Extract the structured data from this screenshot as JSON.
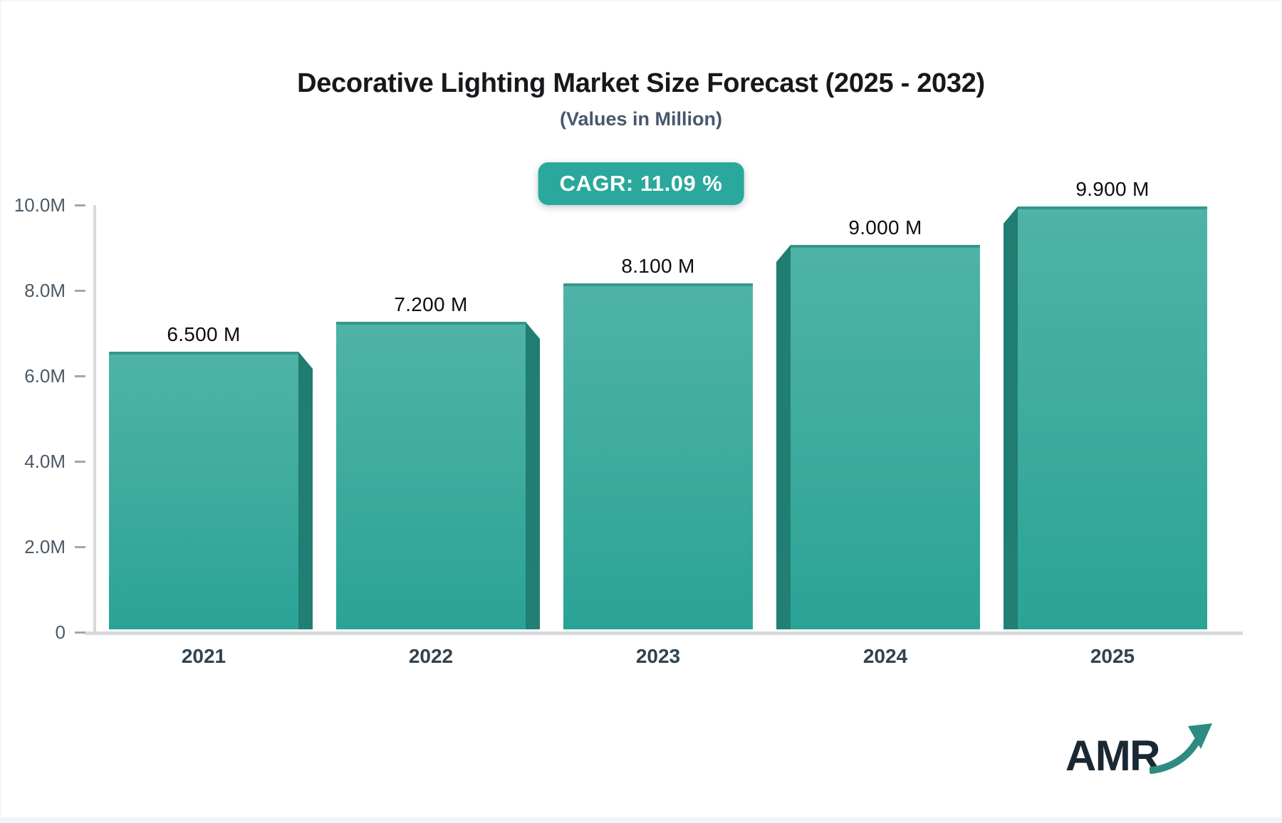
{
  "header": {
    "title": "Decorative Lighting Market Size Forecast (2025 - 2032)",
    "subtitle": "(Values in Million)"
  },
  "badge": {
    "label": "CAGR: 11.09 %"
  },
  "chart_data": {
    "type": "bar",
    "title": "Decorative Lighting Market Size Forecast (2025 - 2032)",
    "subtitle": "(Values in Million)",
    "unit": "Million",
    "cagr_percent": 11.09,
    "categories": [
      "2021",
      "2022",
      "2023",
      "2024",
      "2025"
    ],
    "values": [
      6.5,
      7.2,
      8.1,
      9.0,
      9.9
    ],
    "value_labels": [
      "6.500 M",
      "7.200 M",
      "8.100 M",
      "9.000 M",
      "9.900 M"
    ],
    "xlabel": "",
    "ylabel": "",
    "ylim": [
      0,
      10
    ],
    "ytick_values": [
      0,
      2,
      4,
      6,
      8,
      10
    ],
    "ytick_labels": [
      "0",
      "2.0M",
      "4.0M",
      "6.0M",
      "8.0M",
      "10.0M"
    ],
    "grid": false,
    "legend": false
  },
  "colors": {
    "bar_top": "#4FB3A6",
    "bar_bottom": "#2AA396",
    "bar_side": "#1F7D72",
    "badge_bg": "#2AA89B",
    "axis_line": "#d6dadd",
    "logo_dark": "#1a2833",
    "logo_teal": "#2E8B80"
  },
  "logo": {
    "text": "AMR"
  }
}
